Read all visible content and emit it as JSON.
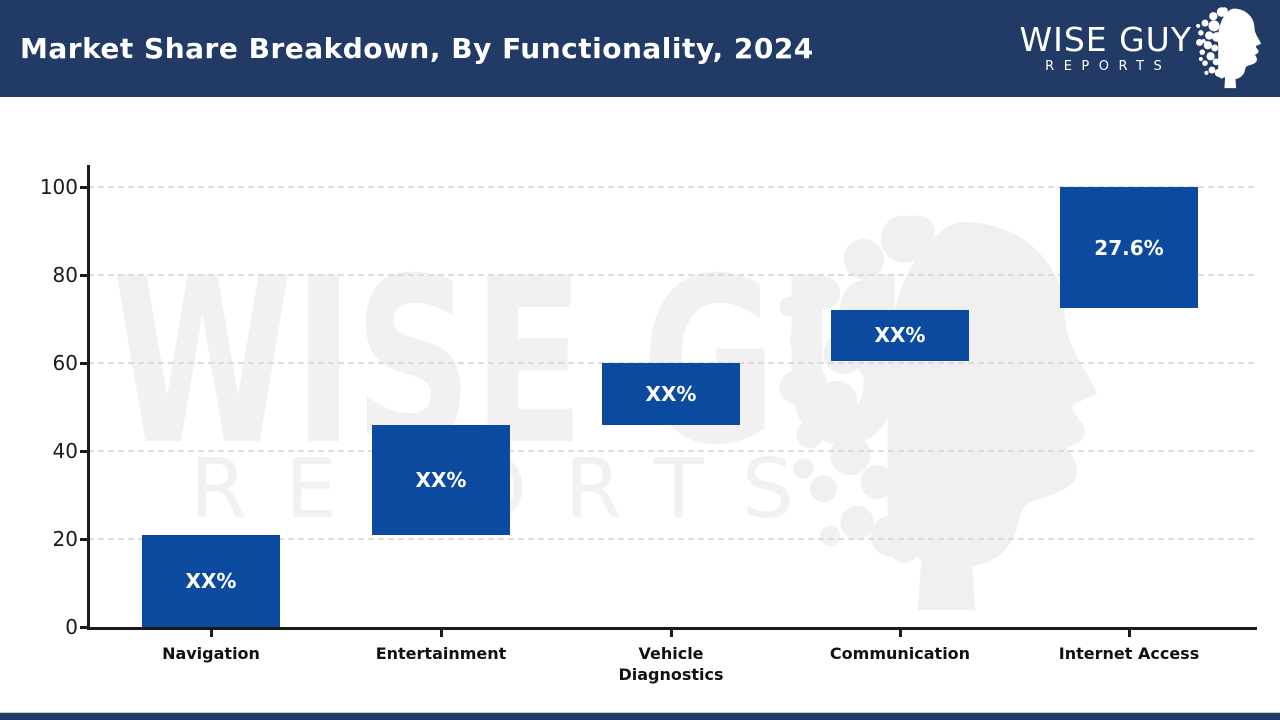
{
  "header": {
    "title": "Market Share Breakdown, By Functionality, 2024",
    "logo": {
      "line1": "WISE GUY",
      "line2": "REPORTS"
    }
  },
  "watermark": {
    "line1": "WISE GUY",
    "line2": "REPORTS"
  },
  "chart_data": {
    "type": "bar",
    "subtype": "waterfall-floating-bars",
    "title": "Market Share Breakdown, By Functionality, 2024",
    "categories": [
      "Navigation",
      "Entertainment",
      "Vehicle\nDiagnostics",
      "Communication",
      "Internet Access"
    ],
    "bars": [
      {
        "category": "Navigation",
        "label": "XX%",
        "start": 0,
        "end": 21
      },
      {
        "category": "Entertainment",
        "label": "XX%",
        "start": 21,
        "end": 46
      },
      {
        "category": "Vehicle Diagnostics",
        "label": "XX%",
        "start": 46,
        "end": 60
      },
      {
        "category": "Communication",
        "label": "XX%",
        "start": 60.5,
        "end": 72
      },
      {
        "category": "Internet Access",
        "label": "27.6%",
        "start": 72.4,
        "end": 100
      }
    ],
    "xlabel": "",
    "ylabel": "",
    "ylim": [
      0,
      100
    ],
    "yticks": [
      0,
      20,
      40,
      60,
      80,
      100
    ],
    "grid": "horizontal-dashed",
    "legend": "none",
    "bar_color": "#0b4a9e",
    "bar_label_color": "#ffffff"
  },
  "colors": {
    "header_bg": "#213a66",
    "footer_bg": "#213a66",
    "bar": "#0b4a9e",
    "axis": "#1a1a1a",
    "gridline": "#dcdcdc",
    "watermark": "#f1f1f1",
    "page_bg": "#ffffff"
  }
}
